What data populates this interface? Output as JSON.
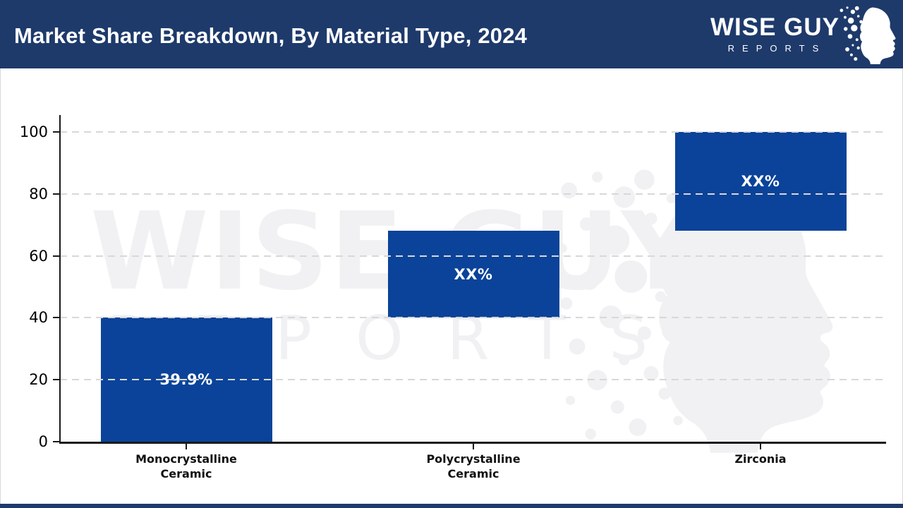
{
  "header": {
    "title": "Market Share Breakdown, By Material Type, 2024",
    "background": "#1e3a6b",
    "logo": {
      "line1": "WISE GUY",
      "line2": "REPORTS"
    }
  },
  "watermark": {
    "line1": "WISE GUY",
    "line2": "REPORTS"
  },
  "chart_data": {
    "type": "bar",
    "subtype": "stacked-waterfall",
    "title": "Market Share Breakdown, By Material Type, 2024",
    "categories": [
      "Monocrystalline Ceramic",
      "Polycrystalline Ceramic",
      "Zirconia"
    ],
    "series": [
      {
        "name": "Monocrystalline Ceramic",
        "start": 0,
        "end": 40,
        "label": "39.9%"
      },
      {
        "name": "Polycrystalline Ceramic",
        "start": 40,
        "end": 68,
        "label": "XX%"
      },
      {
        "name": "Zirconia",
        "start": 68,
        "end": 100,
        "label": "XX%"
      }
    ],
    "xlabel": "",
    "ylabel": "",
    "ylim": [
      0,
      105
    ],
    "yticks": [
      0,
      20,
      40,
      60,
      80,
      100
    ],
    "grid": "horizontal-dashed",
    "grid_on_top": true,
    "legend": "none",
    "bar_color": "#0a4399",
    "bar_label_color": "#ffffff",
    "accent_navy": "#1e3a6b",
    "watermark_color": "#f1f1f3"
  }
}
